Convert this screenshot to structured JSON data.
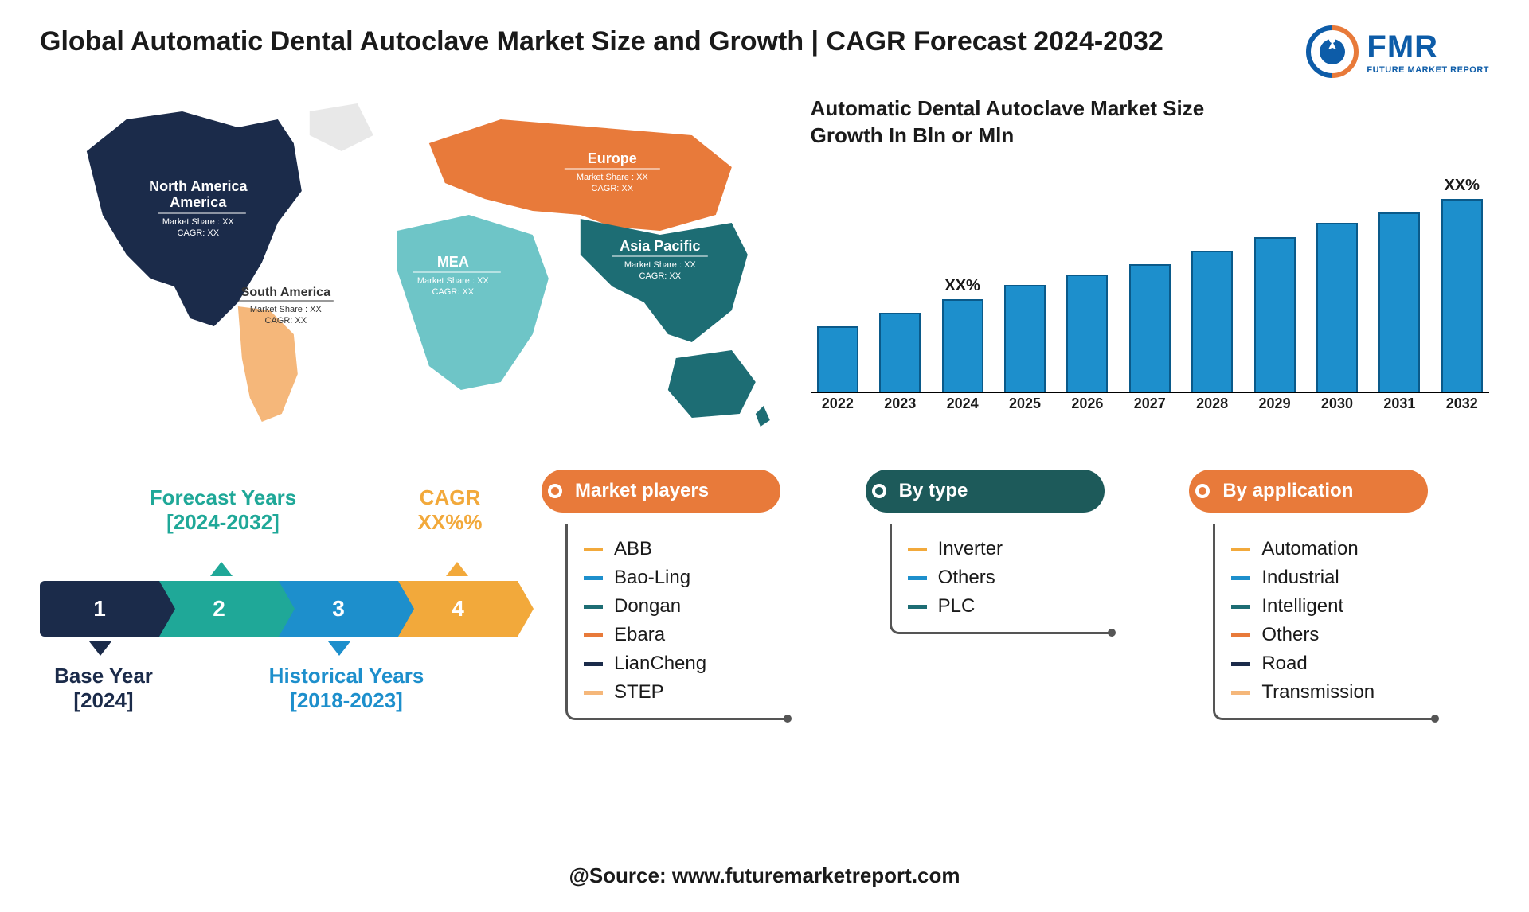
{
  "title": "Global Automatic Dental Autoclave Market Size and Growth | CAGR Forecast 2024-2032",
  "logo": {
    "fmr": "FMR",
    "sub": "FUTURE MARKET REPORT"
  },
  "colors": {
    "na": "#1b2b4a",
    "sa": "#f5b77a",
    "eu": "#e87a3a",
    "mea": "#6ec5c7",
    "ap": "#1d6d74",
    "bar_fill": "#1d8fcc",
    "bar_border": "#0a5a8a",
    "tl1": "#1b2b4a",
    "tl2": "#1fa898",
    "tl3": "#1d8fcc",
    "tl4": "#f2a93b",
    "pill_players": "#e87a3a",
    "pill_type": "#1d5a5a",
    "pill_app": "#e87a3a",
    "dash": [
      "#f2a93b",
      "#1d8fcc",
      "#1d6d74",
      "#e87a3a",
      "#1b2b4a",
      "#f5b77a"
    ]
  },
  "map_regions": {
    "na": {
      "name": "North America",
      "ms": "Market Share : XX",
      "cagr": "CAGR: XX"
    },
    "sa": {
      "name": "South America",
      "ms": "Market Share : XX",
      "cagr": "CAGR: XX"
    },
    "eu": {
      "name": "Europe",
      "ms": "Market Share : XX",
      "cagr": "CAGR: XX"
    },
    "mea": {
      "name": "MEA",
      "ms": "Market Share : XX",
      "cagr": "CAGR: XX"
    },
    "ap": {
      "name": "Asia Pacific",
      "ms": "Market Share : XX",
      "cagr": "CAGR: XX"
    }
  },
  "chart": {
    "title": "Automatic Dental Autoclave Market Size Growth In\nBln or Mln",
    "years": [
      "2022",
      "2023",
      "2024",
      "2025",
      "2026",
      "2027",
      "2028",
      "2029",
      "2030",
      "2031",
      "2032"
    ],
    "values": [
      95,
      115,
      135,
      155,
      170,
      185,
      205,
      225,
      245,
      260,
      280
    ],
    "y_max": 300,
    "annotations": {
      "2": "XX%",
      "10": "XX%"
    }
  },
  "timeline": {
    "base": {
      "title": "Base Year",
      "sub": "[2024]",
      "color_key": "tl1"
    },
    "forecast": {
      "title": "Forecast Years",
      "sub": "[2024-2032]",
      "color_key": "tl2"
    },
    "hist": {
      "title": "Historical Years",
      "sub": "[2018-2023]",
      "color_key": "tl3"
    },
    "cagr": {
      "title": "CAGR",
      "sub": "XX%%",
      "color_key": "tl4"
    },
    "segs": [
      "1",
      "2",
      "3",
      "4"
    ]
  },
  "columns": {
    "players": {
      "pill": "Market players",
      "items": [
        "ABB",
        "Bao-Ling",
        "Dongan",
        "Ebara",
        "LianCheng",
        "STEP"
      ]
    },
    "type": {
      "pill": "By type",
      "items": [
        "Inverter",
        "Others",
        "PLC"
      ]
    },
    "app": {
      "pill": "By application",
      "items": [
        "Automation",
        "Industrial",
        "Intelligent",
        "Others",
        "Road",
        "Transmission"
      ]
    }
  },
  "source": "@Source: www.futuremarketreport.com"
}
